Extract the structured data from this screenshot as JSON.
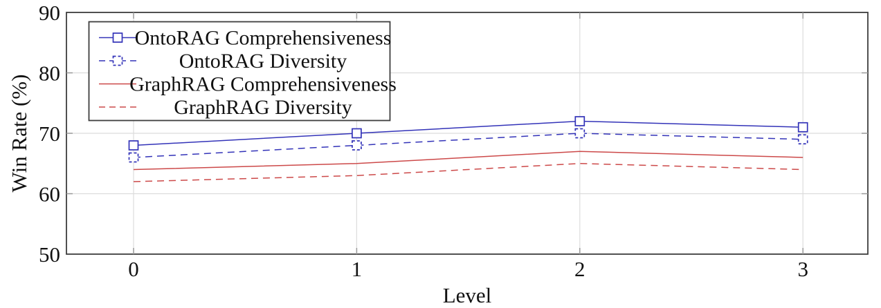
{
  "chart_data": {
    "type": "line",
    "title": "",
    "xlabel": "Level",
    "ylabel": "Win Rate (%)",
    "x": [
      0,
      1,
      2,
      3
    ],
    "xticks": [
      0,
      1,
      2,
      3
    ],
    "yticks": [
      50,
      60,
      70,
      80,
      90
    ],
    "xlim": [
      -0.3,
      3.29
    ],
    "ylim": [
      50,
      90
    ],
    "grid": true,
    "legend_position": "upper-left",
    "series": [
      {
        "name": "OntoRAG Comprehensiveness",
        "values": [
          68,
          70,
          72,
          71
        ],
        "color": "#3232b8",
        "style": "solid",
        "marker": "square"
      },
      {
        "name": "OntoRAG Diversity",
        "values": [
          66,
          68,
          70,
          69
        ],
        "color": "#3232b8",
        "style": "dashed",
        "marker": "square-dashed"
      },
      {
        "name": "GraphRAG Comprehensiveness",
        "values": [
          64,
          65,
          67,
          66
        ],
        "color": "#cc4848",
        "style": "solid",
        "marker": "none"
      },
      {
        "name": "GraphRAG Diversity",
        "values": [
          62,
          63,
          65,
          64
        ],
        "color": "#cc4848",
        "style": "dashed",
        "marker": "none"
      }
    ],
    "colors": {
      "grid": "#dcdcdc",
      "axis_border": "#3d3d3d",
      "tick_mark": "#9a9a9a",
      "text": "#111111",
      "background": "#ffffff",
      "legend_border": "#3d3d3d",
      "legend_background": "#ffffff"
    }
  }
}
